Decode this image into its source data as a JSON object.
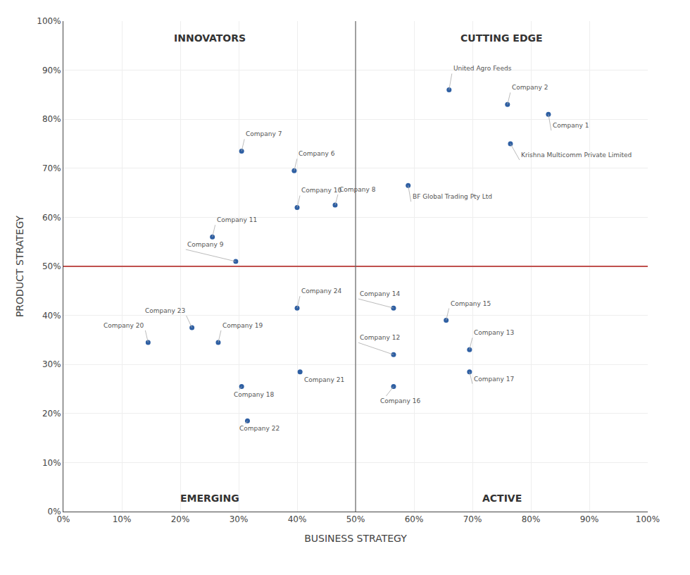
{
  "chart_data": {
    "type": "scatter",
    "xlabel": "BUSINESS STRATEGY",
    "ylabel": "PRODUCT STRATEGY",
    "point_labels": [
      "United Agro Feeds",
      "Company 2",
      "Company 1",
      "Krishna Multicomm Private Limited",
      "BF Global Trading Pty Ltd",
      "Company 7",
      "Company 6",
      "Company 8",
      "Company 10",
      "Company 11",
      "Company 9",
      "Company 14",
      "Company 15",
      "Company 13",
      "Company 12",
      "Company 17",
      "Company 16",
      "Company 23",
      "Company 20",
      "Company 19",
      "Company 24",
      "Company 21",
      "Company 18",
      "Company 22"
    ],
    "x": [
      0.66,
      0.76,
      0.83,
      0.765,
      0.59,
      0.305,
      0.395,
      0.465,
      0.4,
      0.255,
      0.295,
      0.565,
      0.655,
      0.695,
      0.565,
      0.695,
      0.565,
      0.22,
      0.145,
      0.265,
      0.4,
      0.405,
      0.305,
      0.315
    ],
    "values": [
      0.86,
      0.83,
      0.81,
      0.75,
      0.665,
      0.735,
      0.695,
      0.625,
      0.62,
      0.56,
      0.51,
      0.415,
      0.39,
      0.33,
      0.32,
      0.285,
      0.255,
      0.375,
      0.345,
      0.345,
      0.415,
      0.285,
      0.255,
      0.185
    ],
    "color": "#2e5fa3",
    "reference_lines": [
      {
        "axis": "y",
        "value": 0.5,
        "color": "#c0504d"
      },
      {
        "axis": "x",
        "value": 0.5,
        "color": "#666666"
      }
    ],
    "quadrant_labels": [
      "INNOVATORS",
      "CUTTING EDGE",
      "EMERGING",
      "ACTIVE"
    ],
    "xlim": [
      0,
      1
    ],
    "ylim": [
      0,
      1
    ],
    "xticks": [
      {
        "value": 0.0,
        "label": "0%"
      },
      {
        "value": 0.1,
        "label": "10%"
      },
      {
        "value": 0.2,
        "label": "20%"
      },
      {
        "value": 0.3,
        "label": "30%"
      },
      {
        "value": 0.4,
        "label": "40%"
      },
      {
        "value": 0.5,
        "label": "50%"
      },
      {
        "value": 0.6,
        "label": "60%"
      },
      {
        "value": 0.7,
        "label": "70%"
      },
      {
        "value": 0.8,
        "label": "80%"
      },
      {
        "value": 0.9,
        "label": "90%"
      },
      {
        "value": 1.0,
        "label": "100%"
      }
    ],
    "yticks": [
      {
        "value": 0.0,
        "label": "0%"
      },
      {
        "value": 0.1,
        "label": "10%"
      },
      {
        "value": 0.2,
        "label": "20%"
      },
      {
        "value": 0.3,
        "label": "30%"
      },
      {
        "value": 0.4,
        "label": "40%"
      },
      {
        "value": 0.5,
        "label": "50%"
      },
      {
        "value": 0.6,
        "label": "60%"
      },
      {
        "value": 0.7,
        "label": "70%"
      },
      {
        "value": 0.8,
        "label": "80%"
      },
      {
        "value": 0.9,
        "label": "90%"
      },
      {
        "value": 1.0,
        "label": "100%"
      }
    ],
    "grid": true
  }
}
